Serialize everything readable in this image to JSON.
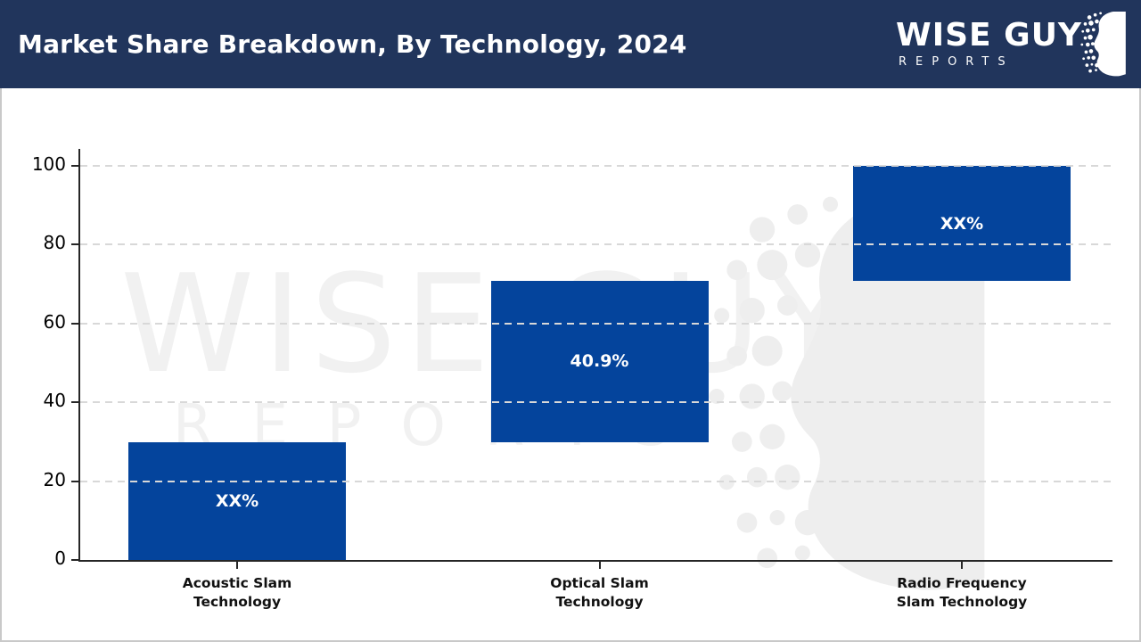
{
  "header": {
    "title": "Market Share Breakdown, By Technology, 2024",
    "bg_color": "#21355c",
    "logo": {
      "line1": "WISE GUY",
      "line2": "REPORTS"
    }
  },
  "watermark": {
    "line1": "WISE GUY",
    "line2": "REPORTS"
  },
  "chart_data": {
    "type": "bar",
    "variant": "floating-stacked-percentage",
    "title": "Market Share Breakdown, By Technology, 2024",
    "categories": [
      "Acoustic Slam\nTechnology",
      "Optical Slam\nTechnology",
      "Radio Frequency\nSlam Technology"
    ],
    "segments": [
      {
        "category": "Acoustic Slam Technology",
        "start": 0,
        "end": 29.9,
        "label": "XX%"
      },
      {
        "category": "Optical Slam Technology",
        "start": 29.9,
        "end": 70.8,
        "label": "40.9%"
      },
      {
        "category": "Radio Frequency Slam Technology",
        "start": 70.8,
        "end": 100,
        "label": "XX%"
      }
    ],
    "ylim": [
      0,
      100
    ],
    "yticks": [
      0,
      20,
      40,
      60,
      80,
      100
    ],
    "xlabel": "",
    "ylabel": "",
    "grid": "horizontal-dashed",
    "legend": "none",
    "bar_color": "#04449c",
    "bar_label_color": "#ffffff",
    "axis_color": "#262626",
    "grid_color": "#d8d8d8"
  }
}
